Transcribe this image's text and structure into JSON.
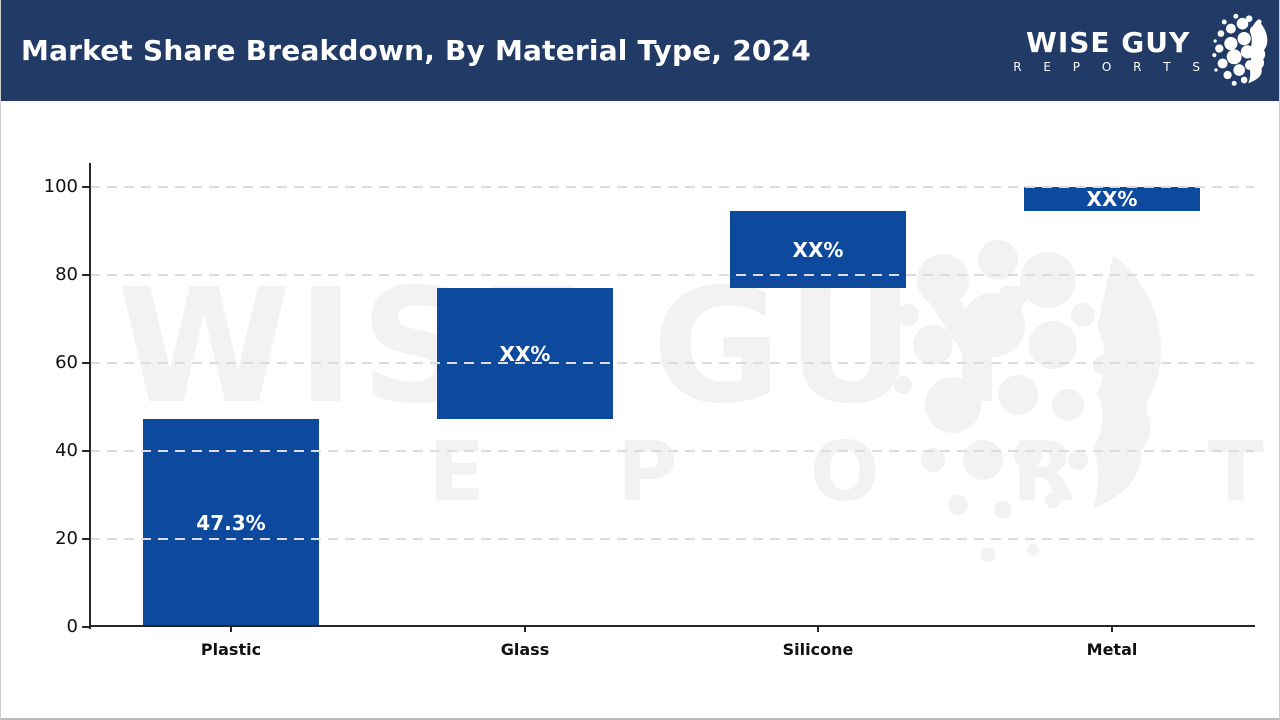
{
  "header": {
    "title": "Market Share Breakdown, By Material Type, 2024",
    "logo": {
      "wordmark": "WISE GUY",
      "subtext": "R E P O R T S"
    }
  },
  "watermark": {
    "line1": "WISE GUY",
    "line2": "R E P O R T S"
  },
  "chart_data": {
    "type": "bar",
    "subtype": "floating-waterfall",
    "title": "Market Share Breakdown, By Material Type, 2024",
    "categories": [
      "Plastic",
      "Glass",
      "Silicone",
      "Metal"
    ],
    "series": [
      {
        "name": "Market share by material type",
        "segments": [
          {
            "category": "Plastic",
            "start": 0,
            "end": 47.3,
            "label": "47.3%"
          },
          {
            "category": "Glass",
            "start": 47.3,
            "end": 77.0,
            "label": "XX%"
          },
          {
            "category": "Silicone",
            "start": 77.0,
            "end": 94.5,
            "label": "XX%"
          },
          {
            "category": "Metal",
            "start": 94.5,
            "end": 100.0,
            "label": "XX%"
          }
        ]
      }
    ],
    "xlabel": "",
    "ylabel": "",
    "ylim": [
      0,
      100
    ],
    "yticks": [
      0,
      20,
      40,
      60,
      80,
      100
    ],
    "grid": "horizontal-dashed",
    "legend": "none",
    "bar_color": "#0d4a9e",
    "bar_label_color": "#ffffff"
  },
  "colors": {
    "header_bg": "#223a66",
    "bar": "#0d4a9e",
    "gridline": "#dcdcdc",
    "axis": "#262626",
    "watermark": "#f2f2f2",
    "page_border": "#c4c4c4"
  }
}
